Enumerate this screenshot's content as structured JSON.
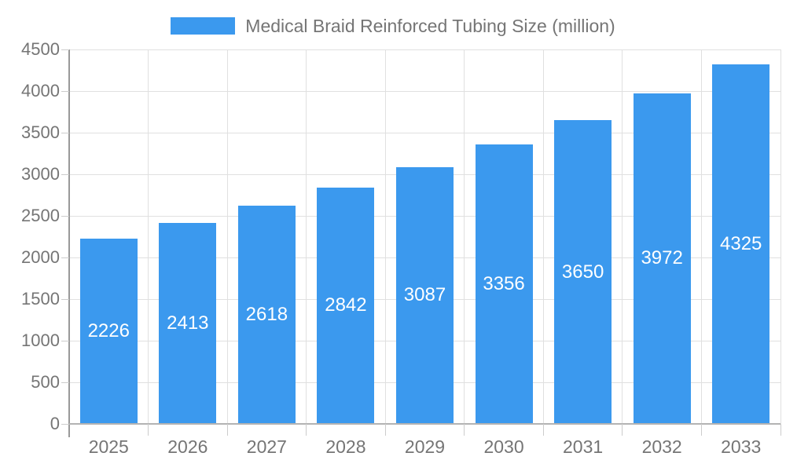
{
  "chart_data": {
    "type": "bar",
    "title": "",
    "legend_label": "Medical Braid Reinforced Tubing Size (million)",
    "categories": [
      "2025",
      "2026",
      "2027",
      "2028",
      "2029",
      "2030",
      "2031",
      "2032",
      "2033"
    ],
    "values": [
      2226,
      2413,
      2618,
      2842,
      3087,
      3356,
      3650,
      3972,
      4325
    ],
    "xlabel": "",
    "ylabel": "",
    "ylim": [
      0,
      4500
    ],
    "ytick_step": 500,
    "yticks": [
      0,
      500,
      1000,
      1500,
      2000,
      2500,
      3000,
      3500,
      4000,
      4500
    ],
    "grid": true,
    "legend_position": "top-center",
    "bar_label_position": "inside-center"
  },
  "colors": {
    "bar": "#3B99EE",
    "bar_label": "#FFFFFF",
    "axis_text": "#757575",
    "grid_line": "#E0E0E0",
    "y_axis_line": "#999999",
    "x_axis_line": "#B3B3B3",
    "tick": "#CCCCCC",
    "background": "#FFFFFF"
  }
}
